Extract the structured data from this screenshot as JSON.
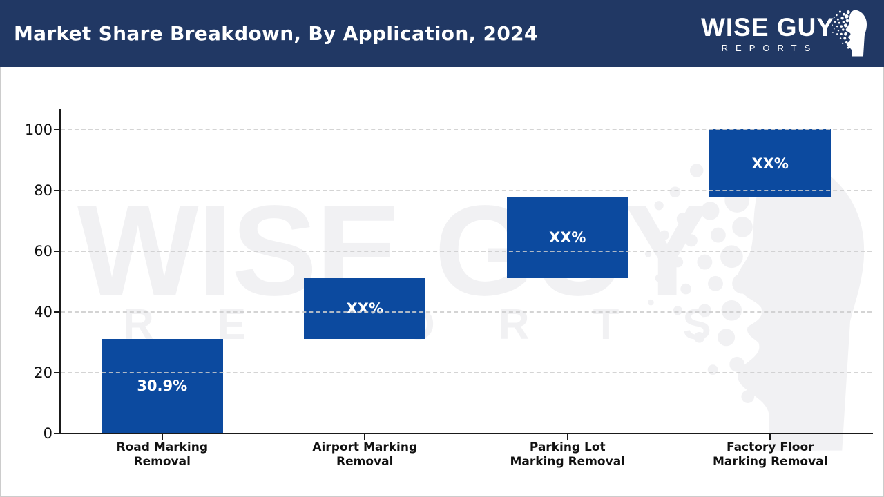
{
  "header": {
    "title": "Market Share Breakdown, By Application, 2024",
    "logo": {
      "line1": "WISE GUY",
      "line2": "REPORTS"
    },
    "bg_color": "#213864"
  },
  "watermark": {
    "line1": "WISE GUY",
    "line2": "REPORTS"
  },
  "chart_data": {
    "type": "bar",
    "subtype": "waterfall",
    "title": "Market Share Breakdown, By Application, 2024",
    "categories": [
      [
        "Road Marking",
        "Removal"
      ],
      [
        "Airport Marking",
        "Removal"
      ],
      [
        "Parking Lot",
        "Marking Removal"
      ],
      [
        "Factory Floor",
        "Marking Removal"
      ]
    ],
    "bars": [
      {
        "label": "30.9%",
        "start": 0,
        "end": 30.9
      },
      {
        "label": "XX%",
        "start": 30.9,
        "end": 51
      },
      {
        "label": "XX%",
        "start": 51,
        "end": 77.5
      },
      {
        "label": "XX%",
        "start": 77.5,
        "end": 100
      }
    ],
    "ylim": [
      0,
      100
    ],
    "yticks": [
      0,
      20,
      40,
      60,
      80,
      100
    ],
    "xlabel": "",
    "ylabel": "",
    "grid": "dashed-horizontal",
    "legend": "none",
    "bar_color": "#0c4a9f",
    "bar_label_color": "#ffffff"
  }
}
